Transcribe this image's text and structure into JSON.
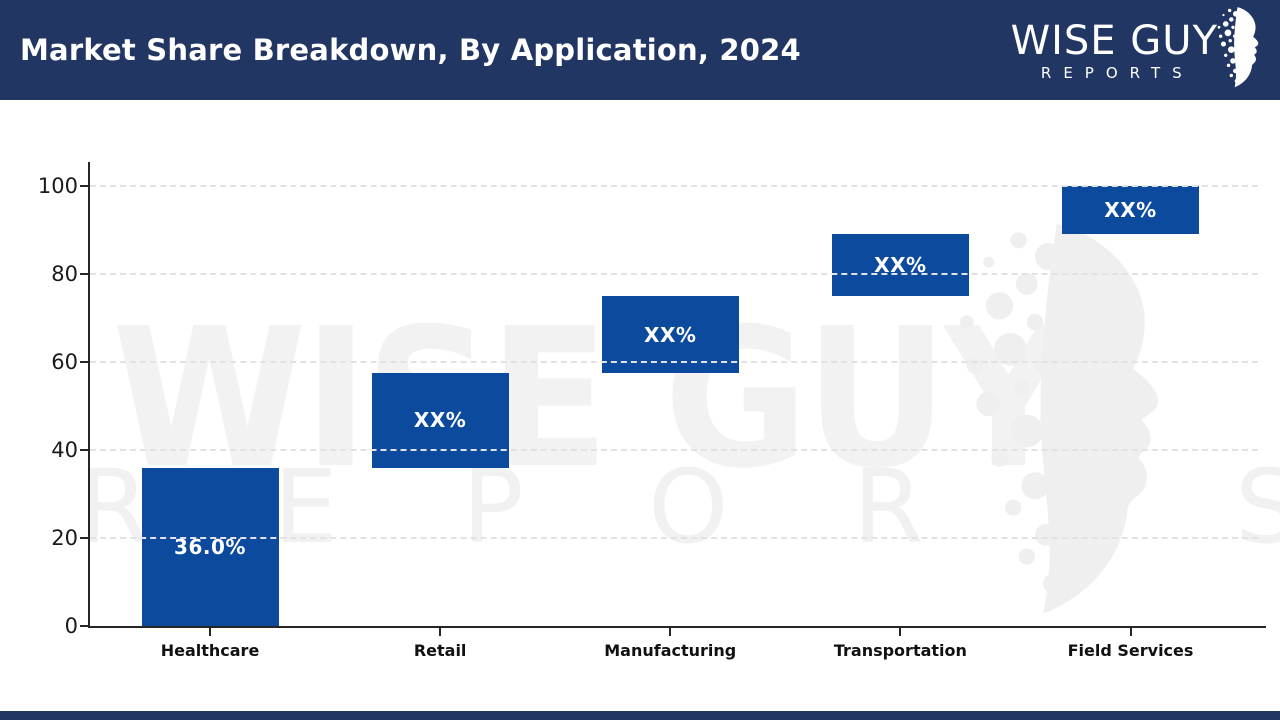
{
  "header": {
    "title": "Market Share Breakdown, By Application, 2024",
    "logo": {
      "line1": "WISE GUY",
      "line2": "REPORTS"
    }
  },
  "watermark": {
    "line1": "WISE GUY",
    "line2": "REPORTS"
  },
  "colors": {
    "header_bg": "#213663",
    "footer_bg": "#213663",
    "bar": "#0b4a9c",
    "bar_label": "#ffffff",
    "grid": "#e2e2e2",
    "axis": "#262626",
    "tick_text": "#1a1a1a",
    "watermark": "#f2f2f2"
  },
  "chart_data": {
    "type": "bar",
    "subtype": "waterfall",
    "title": "Market Share Breakdown, By Application, 2024",
    "xlabel": "",
    "ylabel": "",
    "categories": [
      "Healthcare",
      "Retail",
      "Manufacturing",
      "Transportation",
      "Field Services"
    ],
    "segments": [
      {
        "category": "Healthcare",
        "start": 0,
        "end": 36,
        "value": 36,
        "label": "36.0%"
      },
      {
        "category": "Retail",
        "start": 36,
        "end": 57.5,
        "value": 21.5,
        "label": "XX%"
      },
      {
        "category": "Manufacturing",
        "start": 57.5,
        "end": 75,
        "value": 17.5,
        "label": "XX%"
      },
      {
        "category": "Transportation",
        "start": 75,
        "end": 89,
        "value": 14,
        "label": "XX%"
      },
      {
        "category": "Field Services",
        "start": 89,
        "end": 100,
        "value": 11,
        "label": "XX%"
      }
    ],
    "y_ticks": [
      0,
      20,
      40,
      60,
      80,
      100
    ],
    "ylim": [
      0,
      105
    ],
    "grid": "horizontal-dashed",
    "legend": "none",
    "bar_color": "#0b4a9c"
  }
}
